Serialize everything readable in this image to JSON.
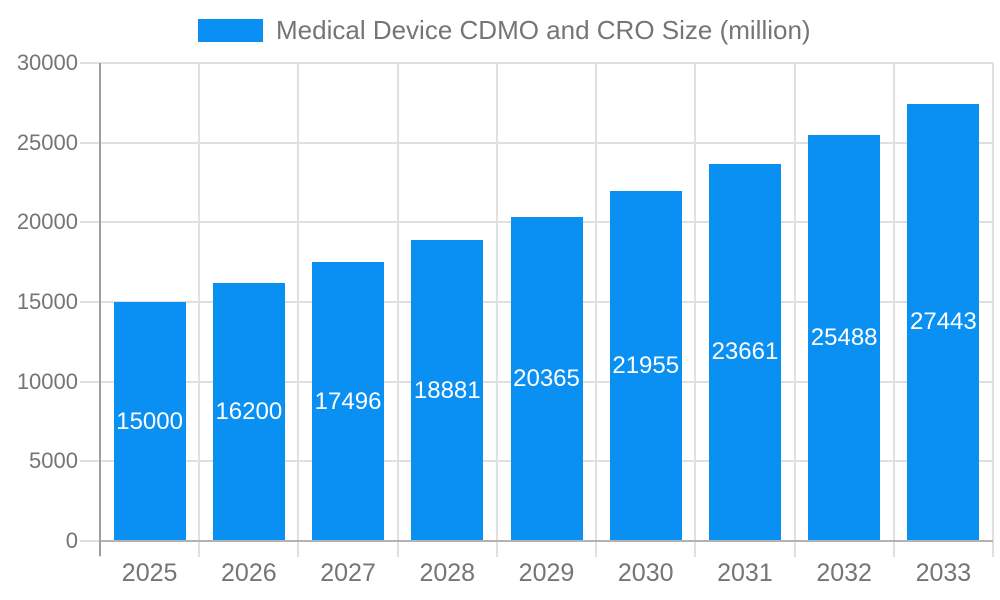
{
  "legend": {
    "swatch_color": "#0a90f2",
    "label": "Medical Device CDMO and CRO Size (million)"
  },
  "chart_data": {
    "type": "bar",
    "title": "Medical Device CDMO and CRO Size (million)",
    "categories": [
      "2025",
      "2026",
      "2027",
      "2028",
      "2029",
      "2030",
      "2031",
      "2032",
      "2033"
    ],
    "values": [
      15000,
      16200,
      17496,
      18881,
      20365,
      21955,
      23661,
      25488,
      27443
    ],
    "series": [
      {
        "name": "Medical Device CDMO and CRO Size (million)",
        "values": [
          15000,
          16200,
          17496,
          18881,
          20365,
          21955,
          23661,
          25488,
          27443
        ]
      }
    ],
    "xlabel": "",
    "ylabel": "",
    "ylim": [
      0,
      30000
    ],
    "y_ticks": [
      0,
      5000,
      10000,
      15000,
      20000,
      25000,
      30000
    ],
    "grid": "on",
    "legend_position": "top",
    "value_labels": "inside-center",
    "colors": {
      "bar": "#0a90f2",
      "value_label": "#ffffff",
      "axis_label": "#757575",
      "gridline": "#e0e0e0",
      "y_axis_line": "#9e9e9e",
      "x_baseline": "#b3b3b3",
      "background": "#ffffff"
    }
  }
}
